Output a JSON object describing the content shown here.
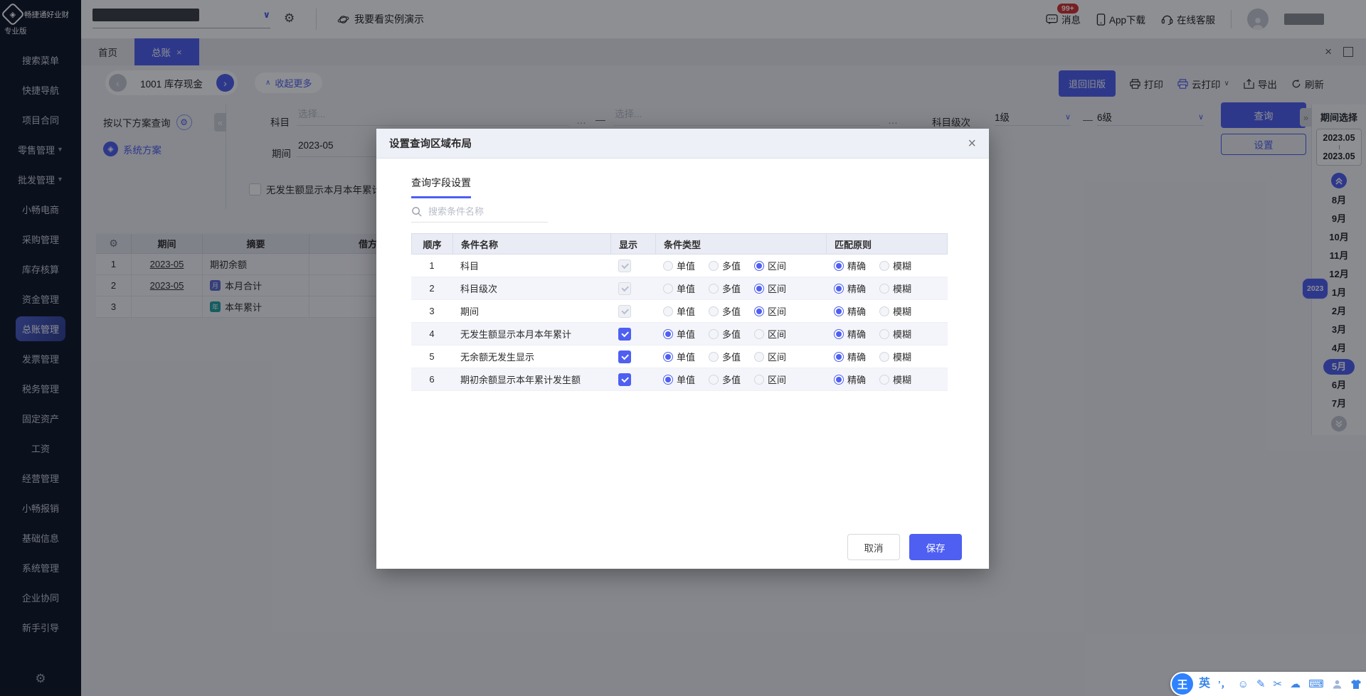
{
  "brand": {
    "icon": "畅",
    "name": "畅捷通好业财",
    "edition": "专业版"
  },
  "sidebar": {
    "items": [
      {
        "label": "搜索菜单"
      },
      {
        "label": "快捷导航"
      },
      {
        "label": "项目合同"
      },
      {
        "label": "零售管理",
        "arrow": true
      },
      {
        "label": "批发管理",
        "arrow": true
      },
      {
        "label": "小畅电商"
      },
      {
        "label": "采购管理"
      },
      {
        "label": "库存核算"
      },
      {
        "label": "资金管理"
      },
      {
        "label": "总账管理",
        "selected": true
      },
      {
        "label": "发票管理"
      },
      {
        "label": "税务管理"
      },
      {
        "label": "固定资产"
      },
      {
        "label": "工资"
      },
      {
        "label": "经营管理"
      },
      {
        "label": "小畅报销"
      },
      {
        "label": "基础信息"
      },
      {
        "label": "系统管理"
      },
      {
        "label": "企业协同"
      },
      {
        "label": "新手引导"
      }
    ]
  },
  "topbar": {
    "demo_link": "我要看实例演示",
    "messages": "消息",
    "messages_badge": "99+",
    "app_download": "App下载",
    "online_service": "在线客服"
  },
  "tabs": {
    "home": "首页",
    "active": "总账",
    "close": "×"
  },
  "toolbar": {
    "account_nav": "1001 库存现金",
    "collapse_more": "收起更多",
    "back_old": "退回旧版",
    "print": "打印",
    "cloud_print": "云打印",
    "export": "导出",
    "refresh": "刷新"
  },
  "scheme_panel": {
    "title": "按以下方案查询",
    "scheme": "系统方案"
  },
  "filters": {
    "subject_label": "科目",
    "select_placeholder": "选择...",
    "ellipsis": "…",
    "dash": "—",
    "period_label": "期间",
    "period_value": "2023-05",
    "level_label": "科目级次",
    "level_from": "1级",
    "level_to": "6级",
    "no_activity_checkbox": "无发生额显示本月本年累计",
    "query": "查询",
    "settings": "设置"
  },
  "bg_table": {
    "headers": [
      "期间",
      "摘要",
      "借方"
    ],
    "rows": [
      {
        "no": "1",
        "period": "2023-05",
        "summary": "期初余额",
        "tag": ""
      },
      {
        "no": "2",
        "period": "2023-05",
        "summary": "本月合计",
        "tag": "月"
      },
      {
        "no": "3",
        "period": "",
        "summary": "本年累计",
        "tag": "年"
      }
    ]
  },
  "period_panel": {
    "title": "期间选择",
    "from": "2023.05",
    "to": "2023.05",
    "year_badge": "2023",
    "months": [
      "8月",
      "9月",
      "10月",
      "11月",
      "12月",
      "1月",
      "2月",
      "3月",
      "4月",
      "5月",
      "6月",
      "7月"
    ],
    "selected_month": "5月",
    "badge_before": "1月"
  },
  "modal": {
    "title": "设置查询区域布局",
    "close": "×",
    "tab": "查询字段设置",
    "search_placeholder": "搜索条件名称",
    "table": {
      "headers": [
        "顺序",
        "条件名称",
        "显示",
        "条件类型",
        "匹配原则"
      ],
      "type_options": [
        "单值",
        "多值",
        "区间"
      ],
      "match_options": [
        "精确",
        "模糊"
      ],
      "rows": [
        {
          "order": "1",
          "name": "科目",
          "checked": true,
          "check_disabled": true,
          "type": "区间",
          "match": "精确"
        },
        {
          "order": "2",
          "name": "科目级次",
          "checked": true,
          "check_disabled": true,
          "type": "区间",
          "match": "精确"
        },
        {
          "order": "3",
          "name": "期间",
          "checked": true,
          "check_disabled": true,
          "type": "区间",
          "match": "精确"
        },
        {
          "order": "4",
          "name": "无发生额显示本月本年累计",
          "checked": true,
          "check_disabled": false,
          "type": "单值",
          "match": "精确"
        },
        {
          "order": "5",
          "name": "无余额无发生显示",
          "checked": true,
          "check_disabled": false,
          "type": "单值",
          "match": "精确"
        },
        {
          "order": "6",
          "name": "期初余额显示本年累计发生额",
          "checked": true,
          "check_disabled": false,
          "type": "单值",
          "match": "精确"
        }
      ]
    },
    "cancel": "取消",
    "save": "保存"
  },
  "ime": {
    "logo": "王",
    "lang": "英",
    "punctuation": "’，",
    "items": [
      {
        "name": "emoji-icon",
        "glyph": "☺"
      },
      {
        "name": "pencil-icon",
        "glyph": "✎"
      },
      {
        "name": "scissors-icon",
        "glyph": "✂"
      },
      {
        "name": "cloud-icon",
        "glyph": "☁"
      },
      {
        "name": "keyboard-icon",
        "glyph": "⌨"
      },
      {
        "name": "person-icon",
        "svg": "person"
      },
      {
        "name": "shirt-icon",
        "svg": "shirt"
      },
      {
        "name": "gear-icon",
        "glyph": "⚙"
      }
    ]
  },
  "colors": {
    "accent": "#4e5ff2",
    "badge_red": "#d43030",
    "ime_blue": "#2e82ff",
    "teal": "#21a3a3"
  }
}
